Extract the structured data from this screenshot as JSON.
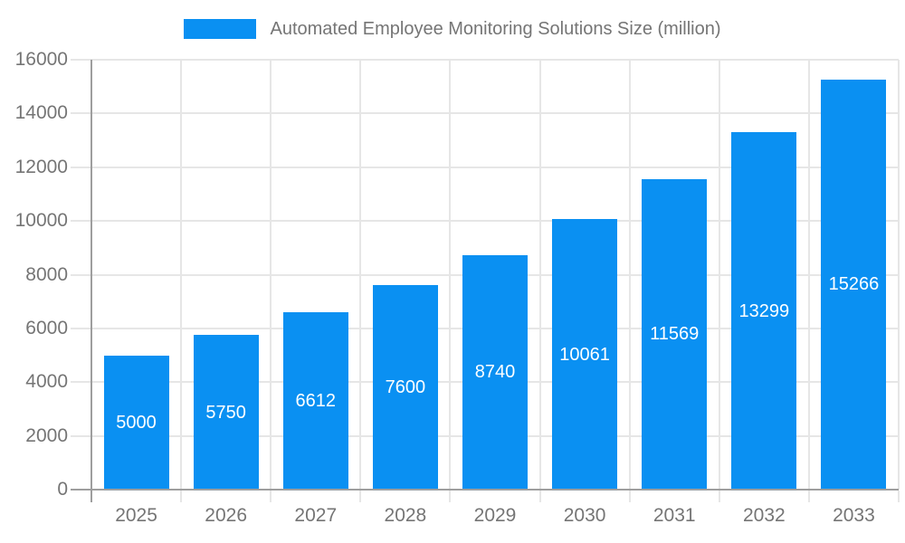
{
  "legend": {
    "position": "top"
  },
  "chart_data": {
    "type": "bar",
    "title": "",
    "legend": "Automated Employee Monitoring Solutions Size (million)",
    "categories": [
      "2025",
      "2026",
      "2027",
      "2028",
      "2029",
      "2030",
      "2031",
      "2032",
      "2033"
    ],
    "values": [
      5000,
      5750,
      6612,
      7600,
      8740,
      10061,
      11569,
      13299,
      15266
    ],
    "xlabel": "",
    "ylabel": "",
    "ylim": [
      0,
      16000
    ],
    "yticks": [
      0,
      2000,
      4000,
      6000,
      8000,
      10000,
      12000,
      14000,
      16000
    ],
    "grid": true,
    "legend_position": "top",
    "data_labels_position": "inside-center",
    "colors": {
      "bar": "#0a90f2",
      "grid": "#e6e6e6",
      "axis_line": "#9e9e9e",
      "axis_text": "#757575",
      "data_label": "#ffffff",
      "background": "#ffffff"
    }
  }
}
